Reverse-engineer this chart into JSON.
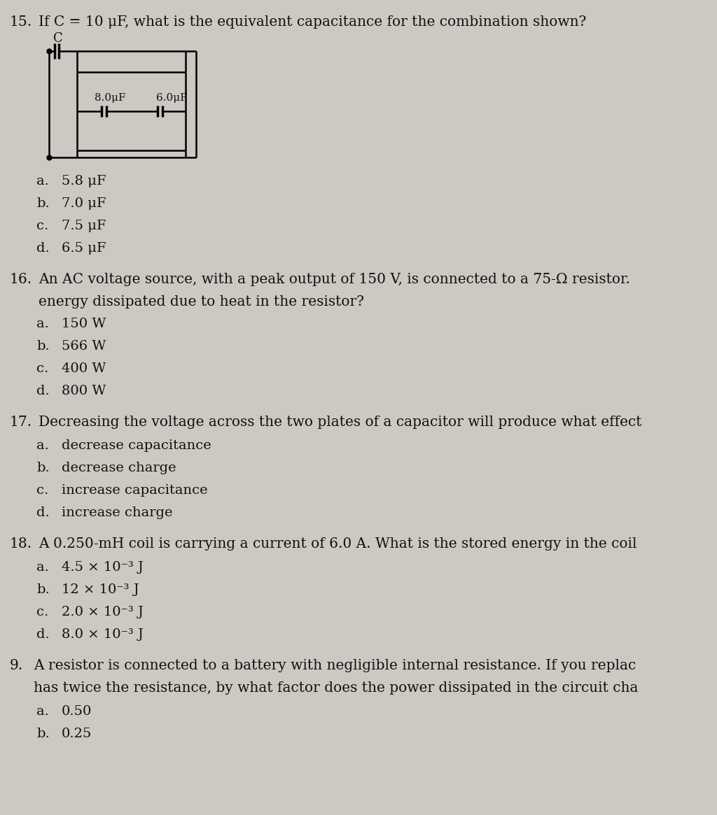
{
  "background_color": "#ccc8c2",
  "text_color": "#111111",
  "questions": [
    {
      "number": "15.",
      "question": "If C = 10 μF, what is the equivalent capacitance for the combination shown?",
      "has_circuit": true,
      "choices": [
        {
          "letter": "a.",
          "text": "5.8 μF"
        },
        {
          "letter": "b.",
          "text": "7.0 μF"
        },
        {
          "letter": "c.",
          "text": "7.5 μF"
        },
        {
          "letter": "d.",
          "text": "6.5 μF"
        }
      ]
    },
    {
      "number": "16.",
      "question_line1": "An AC voltage source, with a peak output of 150 V, is connected to a 75-Ω resistor.",
      "question_line2": "energy dissipated due to heat in the resistor?",
      "has_circuit": false,
      "choices": [
        {
          "letter": "a.",
          "text": "150 W"
        },
        {
          "letter": "b.",
          "text": "566 W"
        },
        {
          "letter": "c.",
          "text": "400 W"
        },
        {
          "letter": "d.",
          "text": "800 W"
        }
      ]
    },
    {
      "number": "17.",
      "question": "Decreasing the voltage across the two plates of a capacitor will produce what effect",
      "has_circuit": false,
      "choices": [
        {
          "letter": "a.",
          "text": "decrease capacitance"
        },
        {
          "letter": "b.",
          "text": "decrease charge"
        },
        {
          "letter": "c.",
          "text": "increase capacitance"
        },
        {
          "letter": "d.",
          "text": "increase charge"
        }
      ]
    },
    {
      "number": "18.",
      "question": "A 0.250-mH coil is carrying a current of 6.0 A. What is the stored energy in the coil",
      "has_circuit": false,
      "choices": [
        {
          "letter": "a.",
          "text": "4.5 × 10⁻³ J"
        },
        {
          "letter": "b.",
          "text": "12 × 10⁻³ J"
        },
        {
          "letter": "c.",
          "text": "2.0 × 10⁻³ J"
        },
        {
          "letter": "d.",
          "text": "8.0 × 10⁻³ J"
        }
      ]
    },
    {
      "number": "9.",
      "question_line1": "A resistor is connected to a battery with negligible internal resistance. If you replac",
      "question_line2": "has twice the resistance, by what factor does the power dissipated in the circuit cha",
      "has_circuit": false,
      "choices": [
        {
          "letter": "a.",
          "text": "0.50"
        },
        {
          "letter": "b.",
          "text": "0.25"
        }
      ]
    }
  ],
  "font_size_question": 14.5,
  "font_size_choice": 14.0,
  "font_size_number": 14.5
}
